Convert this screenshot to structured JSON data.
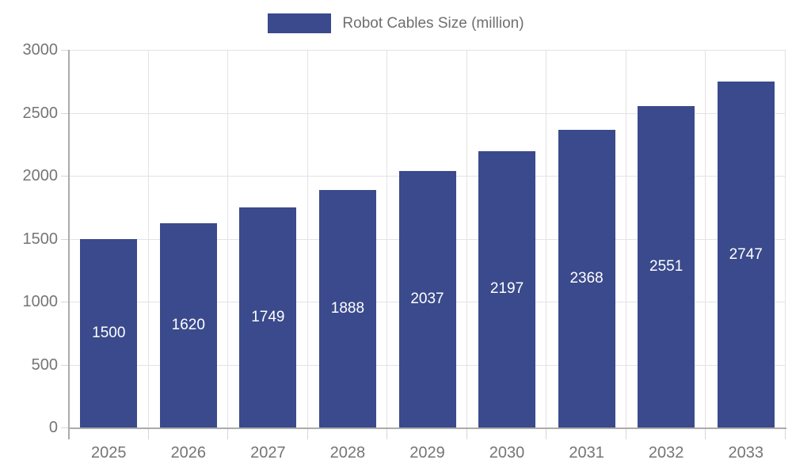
{
  "legend": {
    "label": "Robot Cables Size (million)"
  },
  "chart_data": {
    "type": "bar",
    "title": "",
    "xlabel": "",
    "ylabel": "",
    "categories": [
      "2025",
      "2026",
      "2027",
      "2028",
      "2029",
      "2030",
      "2031",
      "2032",
      "2033"
    ],
    "series": [
      {
        "name": "Robot Cables Size (million)",
        "values": [
          1500,
          1620,
          1749,
          1888,
          2037,
          2197,
          2368,
          2551,
          2747
        ]
      }
    ],
    "bar_value_labels": [
      "1500",
      "1620",
      "1749",
      "1888",
      "2037",
      "2197",
      "2368",
      "2551",
      "2747"
    ],
    "ylim": [
      0,
      3000
    ],
    "yticks": [
      0,
      500,
      1000,
      1500,
      2000,
      2500,
      3000
    ],
    "grid": true,
    "legend_position": "top-center"
  },
  "colors": {
    "bar": "#3A4A8C",
    "bar_label": "#FFFFFF",
    "axis_text": "#757575",
    "legend_text": "#6F6F6F",
    "grid_line": "#E3E3E3",
    "axis_line": "#ABABAB",
    "tick_line": "#D6D6D6",
    "background": "#FFFFFF"
  }
}
